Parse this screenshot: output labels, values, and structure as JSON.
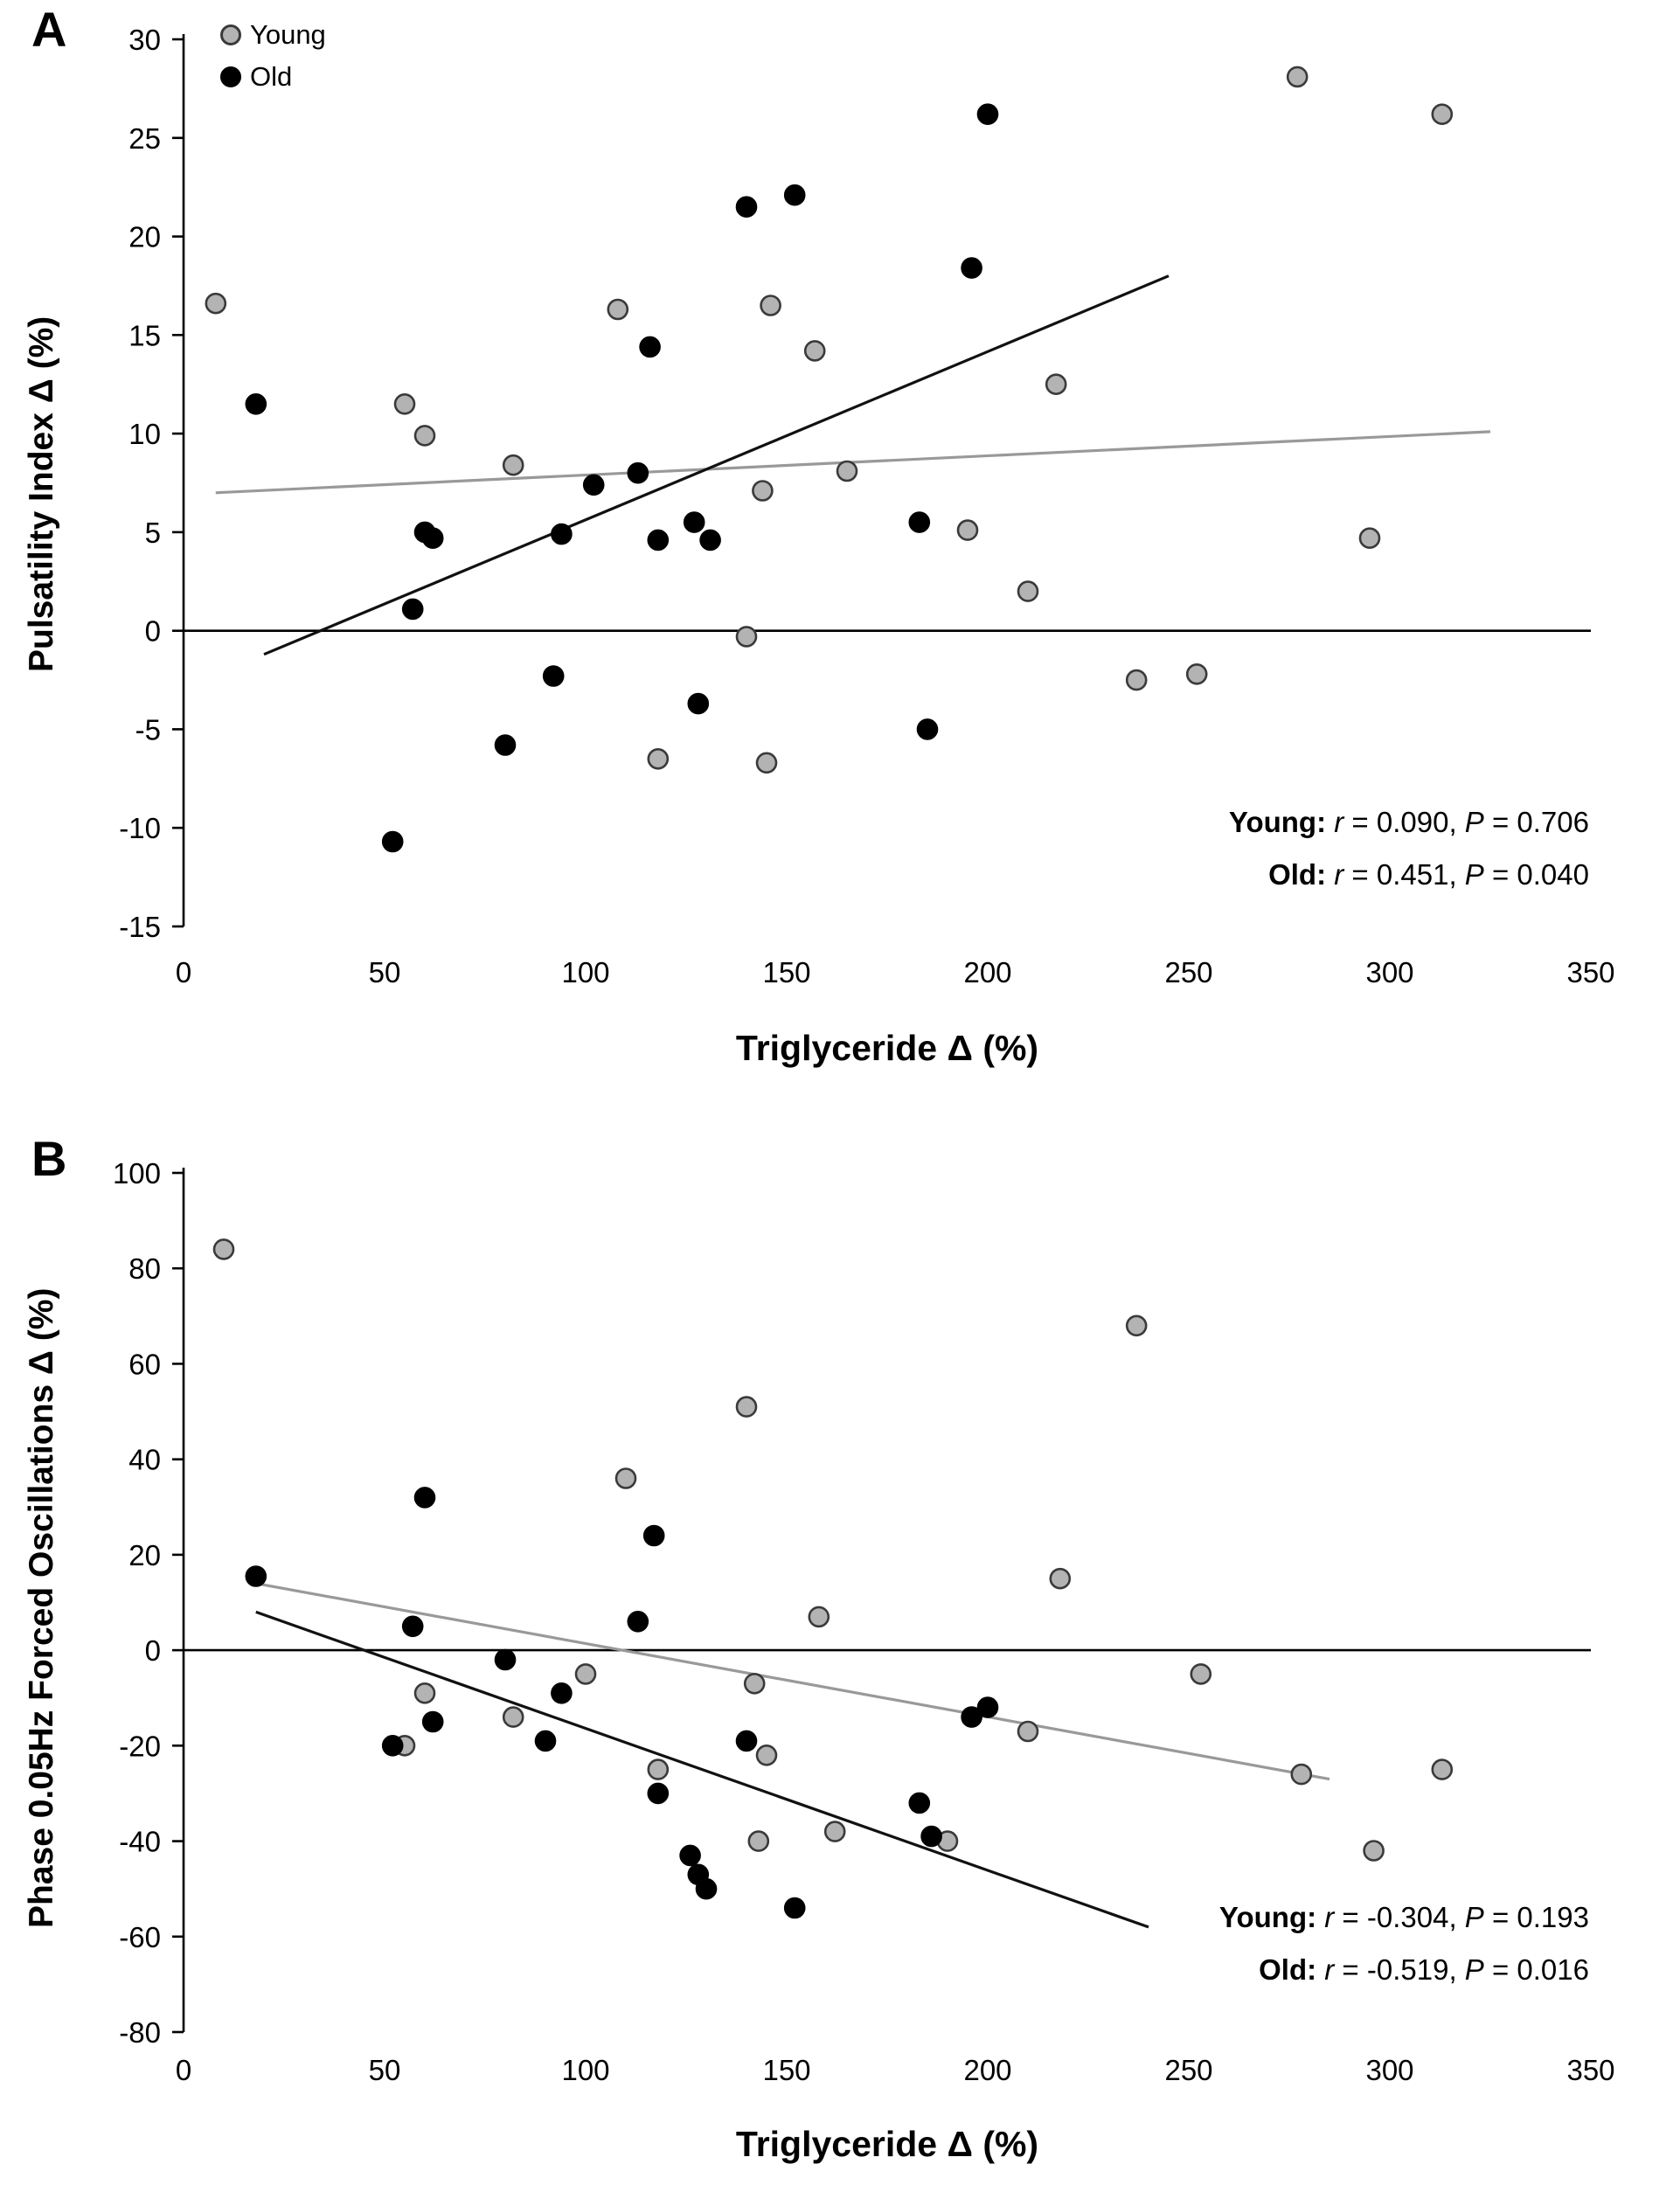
{
  "legend": {
    "position": "top-left",
    "items": [
      {
        "label": "Young",
        "marker_fill": "#b3b3b3",
        "marker_stroke": "#3a3a3a"
      },
      {
        "label": "Old",
        "marker_fill": "#000000",
        "marker_stroke": "#000000"
      }
    ]
  },
  "chart_data": [
    {
      "type": "scatter",
      "panel_label": "A",
      "xlabel": "Triglyceride Δ (%)",
      "ylabel": "Pulsatility Index Δ (%)",
      "xlim": [
        0,
        350
      ],
      "ylim": [
        -15,
        30
      ],
      "xticks": [
        0,
        50,
        100,
        150,
        200,
        250,
        300,
        350
      ],
      "yticks": [
        -15,
        -10,
        -5,
        0,
        5,
        10,
        15,
        20,
        25,
        30
      ],
      "grid": false,
      "legend_position": "top-left",
      "series": [
        {
          "name": "Young",
          "marker_fill": "#b3b3b3",
          "marker_stroke": "#3a3a3a",
          "points": [
            [
              8,
              16.6
            ],
            [
              55,
              11.5
            ],
            [
              60,
              9.9
            ],
            [
              82,
              8.4
            ],
            [
              108,
              16.3
            ],
            [
              118,
              -6.5
            ],
            [
              140,
              -0.3
            ],
            [
              144,
              7.1
            ],
            [
              146,
              16.5
            ],
            [
              145,
              -6.7
            ],
            [
              157,
              14.2
            ],
            [
              165,
              8.1
            ],
            [
              195,
              5.1
            ],
            [
              210,
              2.0
            ],
            [
              217,
              12.5
            ],
            [
              237,
              -2.5
            ],
            [
              252,
              -2.2
            ],
            [
              277,
              28.1
            ],
            [
              295,
              4.7
            ],
            [
              313,
              26.2
            ]
          ]
        },
        {
          "name": "Old",
          "marker_fill": "#000000",
          "marker_stroke": "#000000",
          "points": [
            [
              18,
              11.5
            ],
            [
              52,
              -10.7
            ],
            [
              57,
              1.1
            ],
            [
              60,
              5.0
            ],
            [
              62,
              4.7
            ],
            [
              80,
              -5.8
            ],
            [
              92,
              -2.3
            ],
            [
              94,
              4.9
            ],
            [
              102,
              7.4
            ],
            [
              113,
              8.0
            ],
            [
              116,
              14.4
            ],
            [
              118,
              4.6
            ],
            [
              127,
              5.5
            ],
            [
              128,
              -3.7
            ],
            [
              131,
              4.6
            ],
            [
              140,
              21.5
            ],
            [
              152,
              22.1
            ],
            [
              183,
              5.5
            ],
            [
              185,
              -5.0
            ],
            [
              196,
              18.4
            ],
            [
              200,
              26.2
            ]
          ]
        }
      ],
      "trendlines": [
        {
          "name": "Young",
          "color": "#999999",
          "start": [
            8,
            7.0
          ],
          "end": [
            325,
            10.1
          ]
        },
        {
          "name": "Old",
          "color": "#111111",
          "start": [
            20,
            -1.2
          ],
          "end": [
            245,
            18.0
          ]
        }
      ],
      "stats": [
        {
          "group": "Young:",
          "r": "0.090",
          "p": "0.706"
        },
        {
          "group": "Old:",
          "r": "0.451",
          "p": "0.040"
        }
      ]
    },
    {
      "type": "scatter",
      "panel_label": "B",
      "xlabel": "Triglyceride Δ (%)",
      "ylabel": "Phase 0.05Hz Forced Oscillations Δ (%)",
      "xlim": [
        0,
        350
      ],
      "ylim": [
        -80,
        100
      ],
      "xticks": [
        0,
        50,
        100,
        150,
        200,
        250,
        300,
        350
      ],
      "yticks": [
        -80,
        -60,
        -40,
        -20,
        0,
        20,
        40,
        60,
        80,
        100
      ],
      "grid": false,
      "legend_position": "none",
      "series": [
        {
          "name": "Young",
          "marker_fill": "#b3b3b3",
          "marker_stroke": "#3a3a3a",
          "points": [
            [
              10,
              84
            ],
            [
              55,
              -20
            ],
            [
              60,
              -9
            ],
            [
              82,
              -14
            ],
            [
              100,
              -5
            ],
            [
              110,
              36
            ],
            [
              118,
              -25
            ],
            [
              140,
              51
            ],
            [
              142,
              -7
            ],
            [
              145,
              -22
            ],
            [
              143,
              -40
            ],
            [
              158,
              7
            ],
            [
              162,
              -38
            ],
            [
              190,
              -40
            ],
            [
              210,
              -17
            ],
            [
              218,
              15
            ],
            [
              237,
              68
            ],
            [
              253,
              -5
            ],
            [
              278,
              -26
            ],
            [
              296,
              -42
            ],
            [
              313,
              -25
            ]
          ]
        },
        {
          "name": "Old",
          "marker_fill": "#000000",
          "marker_stroke": "#000000",
          "points": [
            [
              18,
              15.5
            ],
            [
              52,
              -20
            ],
            [
              57,
              5
            ],
            [
              60,
              32
            ],
            [
              62,
              -15
            ],
            [
              80,
              -2
            ],
            [
              90,
              -19
            ],
            [
              94,
              -9
            ],
            [
              113,
              6
            ],
            [
              117,
              24
            ],
            [
              118,
              -30
            ],
            [
              126,
              -43
            ],
            [
              128,
              -47
            ],
            [
              130,
              -50
            ],
            [
              140,
              -19
            ],
            [
              152,
              -54
            ],
            [
              183,
              -32
            ],
            [
              186,
              -39
            ],
            [
              196,
              -14
            ],
            [
              200,
              -12
            ]
          ]
        }
      ],
      "trendlines": [
        {
          "name": "Young",
          "color": "#999999",
          "start": [
            18,
            14
          ],
          "end": [
            285,
            -27
          ]
        },
        {
          "name": "Old",
          "color": "#111111",
          "start": [
            18,
            8
          ],
          "end": [
            240,
            -58
          ]
        }
      ],
      "stats": [
        {
          "group": "Young:",
          "r": "-0.304",
          "p": "0.193"
        },
        {
          "group": "Old:",
          "r": "-0.519",
          "p": "0.016"
        }
      ]
    }
  ]
}
